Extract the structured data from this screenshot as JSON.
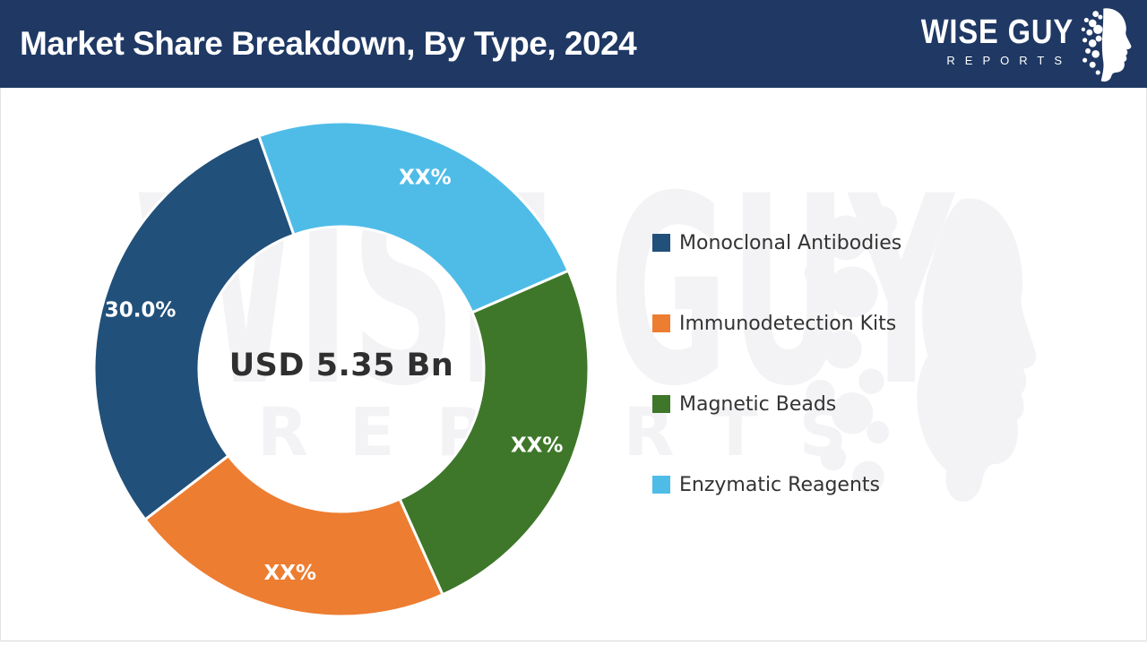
{
  "header": {
    "title": "Market Share Breakdown, By Type, 2024",
    "bg_color": "#1F3864",
    "logo": {
      "line1": "WISE GUY",
      "line2": "REPORTS"
    }
  },
  "watermark": {
    "line1": "WISE GUY",
    "line2": "REPORTS"
  },
  "chart_data": {
    "type": "pie",
    "subtype": "donut",
    "title": "Market Share Breakdown, By Type, 2024",
    "categories": [
      "Monoclonal Antibodies",
      "Immunodetection Kits",
      "Magnetic Beads",
      "Enzymatic Reagents"
    ],
    "values": [
      30.0,
      21.3,
      24.8,
      23.9
    ],
    "slice_labels": [
      "30.0%",
      "XX%",
      "XX%",
      "XX%"
    ],
    "colors": [
      "#21507A",
      "#ED7D31",
      "#3E7729",
      "#4FBCE8"
    ],
    "center_label": "USD 5.35 Bn",
    "start_angle_deg": 109.5,
    "direction": "counterclockwise",
    "donut_hole_ratio": 0.576,
    "legend_position": "right"
  },
  "legend": {
    "items": [
      {
        "label": "Monoclonal Antibodies",
        "color": "#21507A"
      },
      {
        "label": "Immunodetection Kits",
        "color": "#ED7D31"
      },
      {
        "label": "Magnetic Beads",
        "color": "#3E7729"
      },
      {
        "label": "Enzymatic Reagents",
        "color": "#4FBCE8"
      }
    ]
  }
}
